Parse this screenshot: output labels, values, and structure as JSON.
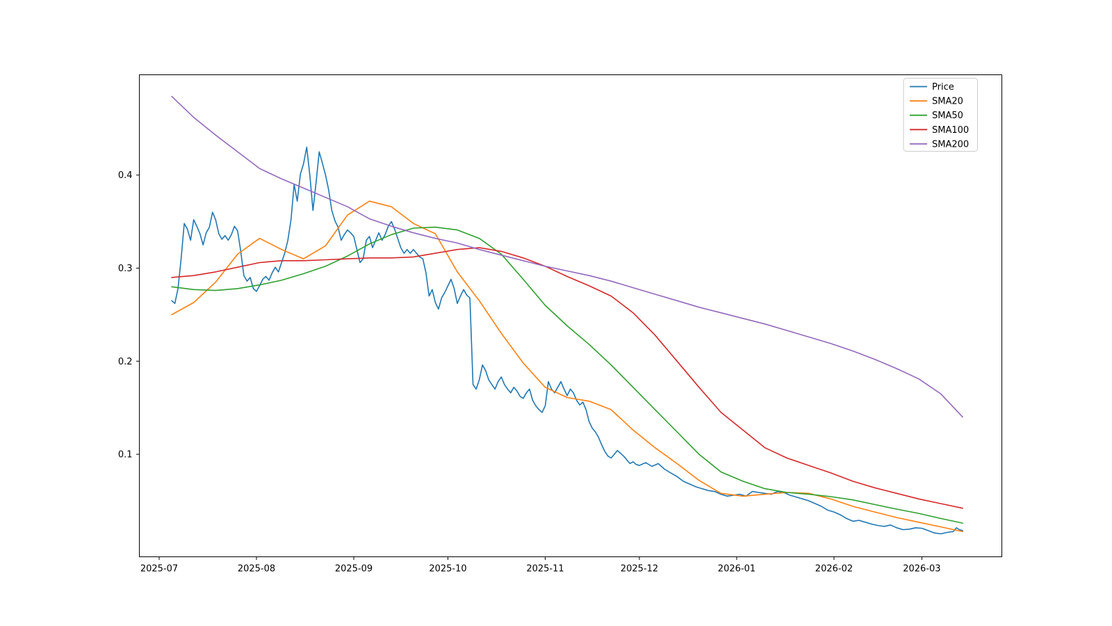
{
  "figure": {
    "background": "#ffffff",
    "axes_edge_color": "#000000",
    "tick_color": "#000000",
    "legend": {
      "position": "upper right",
      "border_color": "#cccccc",
      "background": "rgba(255,255,255,0.8)",
      "entries": [
        "Price",
        "SMA20",
        "SMA50",
        "SMA100",
        "SMA200"
      ]
    }
  },
  "chart_data": {
    "type": "line",
    "title": "",
    "xlabel": "",
    "ylabel": "",
    "grid": false,
    "legend_position": "upper right",
    "x_axis": {
      "kind": "date",
      "tick_labels": [
        "2025-07",
        "2025-08",
        "2025-09",
        "2025-10",
        "2025-11",
        "2025-12",
        "2026-01",
        "2026-02",
        "2026-03"
      ],
      "tick_dates": [
        "2025-07-01",
        "2025-08-01",
        "2025-09-01",
        "2025-10-01",
        "2025-11-01",
        "2025-12-01",
        "2026-01-01",
        "2026-02-01",
        "2026-03-01"
      ],
      "xlim": [
        "2025-06-24",
        "2026-03-26"
      ]
    },
    "y_axis": {
      "tick_labels": [
        "0.1",
        "0.2",
        "0.3",
        "0.4"
      ],
      "ticks": [
        0.1,
        0.2,
        0.3,
        0.4
      ],
      "ylim": [
        -0.01,
        0.508
      ]
    },
    "series": [
      {
        "name": "Price",
        "color": "#1f77b4",
        "x": [
          "2025-07-05",
          "2025-07-06",
          "2025-07-07",
          "2025-07-08",
          "2025-07-09",
          "2025-07-10",
          "2025-07-11",
          "2025-07-12",
          "2025-07-13",
          "2025-07-14",
          "2025-07-15",
          "2025-07-16",
          "2025-07-17",
          "2025-07-18",
          "2025-07-19",
          "2025-07-20",
          "2025-07-21",
          "2025-07-22",
          "2025-07-23",
          "2025-07-24",
          "2025-07-25",
          "2025-07-26",
          "2025-07-27",
          "2025-07-28",
          "2025-07-29",
          "2025-07-30",
          "2025-07-31",
          "2025-08-01",
          "2025-08-02",
          "2025-08-03",
          "2025-08-04",
          "2025-08-05",
          "2025-08-06",
          "2025-08-07",
          "2025-08-08",
          "2025-08-09",
          "2025-08-10",
          "2025-08-11",
          "2025-08-12",
          "2025-08-13",
          "2025-08-14",
          "2025-08-15",
          "2025-08-16",
          "2025-08-17",
          "2025-08-18",
          "2025-08-19",
          "2025-08-20",
          "2025-08-21",
          "2025-08-22",
          "2025-08-23",
          "2025-08-24",
          "2025-08-25",
          "2025-08-26",
          "2025-08-27",
          "2025-08-28",
          "2025-08-29",
          "2025-08-30",
          "2025-08-31",
          "2025-09-01",
          "2025-09-02",
          "2025-09-03",
          "2025-09-04",
          "2025-09-05",
          "2025-09-06",
          "2025-09-07",
          "2025-09-08",
          "2025-09-09",
          "2025-09-10",
          "2025-09-11",
          "2025-09-12",
          "2025-09-13",
          "2025-09-14",
          "2025-09-15",
          "2025-09-16",
          "2025-09-17",
          "2025-09-18",
          "2025-09-19",
          "2025-09-20",
          "2025-09-21",
          "2025-09-22",
          "2025-09-23",
          "2025-09-24",
          "2025-09-25",
          "2025-09-26",
          "2025-09-27",
          "2025-09-28",
          "2025-09-29",
          "2025-09-30",
          "2025-10-01",
          "2025-10-02",
          "2025-10-03",
          "2025-10-04",
          "2025-10-05",
          "2025-10-06",
          "2025-10-07",
          "2025-10-08",
          "2025-10-09",
          "2025-10-10",
          "2025-10-11",
          "2025-10-12",
          "2025-10-13",
          "2025-10-14",
          "2025-10-15",
          "2025-10-16",
          "2025-10-17",
          "2025-10-18",
          "2025-10-19",
          "2025-10-20",
          "2025-10-21",
          "2025-10-22",
          "2025-10-23",
          "2025-10-24",
          "2025-10-25",
          "2025-10-26",
          "2025-10-27",
          "2025-10-28",
          "2025-10-29",
          "2025-10-30",
          "2025-10-31",
          "2025-11-01",
          "2025-11-02",
          "2025-11-03",
          "2025-11-04",
          "2025-11-05",
          "2025-11-06",
          "2025-11-07",
          "2025-11-08",
          "2025-11-09",
          "2025-11-10",
          "2025-11-11",
          "2025-11-12",
          "2025-11-13",
          "2025-11-14",
          "2025-11-15",
          "2025-11-16",
          "2025-11-17",
          "2025-11-18",
          "2025-11-19",
          "2025-11-20",
          "2025-11-21",
          "2025-11-22",
          "2025-11-23",
          "2025-11-24",
          "2025-11-25",
          "2025-11-26",
          "2025-11-27",
          "2025-11-28",
          "2025-11-29",
          "2025-11-30",
          "2025-12-01",
          "2025-12-03",
          "2025-12-05",
          "2025-12-07",
          "2025-12-09",
          "2025-12-11",
          "2025-12-13",
          "2025-12-15",
          "2025-12-17",
          "2025-12-19",
          "2025-12-21",
          "2025-12-23",
          "2025-12-25",
          "2025-12-27",
          "2025-12-29",
          "2025-12-31",
          "2026-01-02",
          "2026-01-04",
          "2026-01-06",
          "2026-01-08",
          "2026-01-10",
          "2026-01-12",
          "2026-01-14",
          "2026-01-16",
          "2026-01-18",
          "2026-01-20",
          "2026-01-22",
          "2026-01-24",
          "2026-01-26",
          "2026-01-28",
          "2026-01-30",
          "2026-02-01",
          "2026-02-03",
          "2026-02-05",
          "2026-02-07",
          "2026-02-09",
          "2026-02-11",
          "2026-02-13",
          "2026-02-15",
          "2026-02-17",
          "2026-02-19",
          "2026-02-21",
          "2026-02-23",
          "2026-02-25",
          "2026-02-27",
          "2026-03-01",
          "2026-03-03",
          "2026-03-05",
          "2026-03-07",
          "2026-03-09",
          "2026-03-11",
          "2026-03-12",
          "2026-03-13",
          "2026-03-14"
        ],
        "y": [
          0.265,
          0.262,
          0.278,
          0.31,
          0.348,
          0.342,
          0.33,
          0.352,
          0.345,
          0.337,
          0.325,
          0.338,
          0.344,
          0.36,
          0.352,
          0.337,
          0.331,
          0.335,
          0.33,
          0.336,
          0.345,
          0.34,
          0.318,
          0.292,
          0.286,
          0.29,
          0.278,
          0.275,
          0.281,
          0.288,
          0.291,
          0.287,
          0.295,
          0.301,
          0.296,
          0.306,
          0.316,
          0.33,
          0.352,
          0.39,
          0.372,
          0.401,
          0.412,
          0.43,
          0.4,
          0.362,
          0.392,
          0.425,
          0.413,
          0.4,
          0.384,
          0.362,
          0.351,
          0.344,
          0.33,
          0.336,
          0.341,
          0.338,
          0.334,
          0.32,
          0.306,
          0.31,
          0.33,
          0.334,
          0.322,
          0.33,
          0.338,
          0.33,
          0.336,
          0.345,
          0.35,
          0.342,
          0.332,
          0.322,
          0.316,
          0.32,
          0.316,
          0.32,
          0.316,
          0.312,
          0.31,
          0.295,
          0.27,
          0.277,
          0.263,
          0.256,
          0.268,
          0.274,
          0.281,
          0.288,
          0.278,
          0.262,
          0.27,
          0.277,
          0.271,
          0.268,
          0.175,
          0.17,
          0.18,
          0.196,
          0.19,
          0.18,
          0.175,
          0.17,
          0.178,
          0.183,
          0.175,
          0.17,
          0.166,
          0.172,
          0.168,
          0.162,
          0.16,
          0.166,
          0.17,
          0.158,
          0.152,
          0.148,
          0.145,
          0.152,
          0.178,
          0.17,
          0.166,
          0.172,
          0.178,
          0.17,
          0.163,
          0.17,
          0.166,
          0.158,
          0.153,
          0.156,
          0.148,
          0.135,
          0.128,
          0.124,
          0.118,
          0.11,
          0.103,
          0.098,
          0.096,
          0.1,
          0.104,
          0.101,
          0.098,
          0.094,
          0.09,
          0.092,
          0.089,
          0.088,
          0.091,
          0.087,
          0.09,
          0.084,
          0.08,
          0.076,
          0.071,
          0.068,
          0.065,
          0.063,
          0.061,
          0.06,
          0.057,
          0.055,
          0.056,
          0.057,
          0.055,
          0.06,
          0.059,
          0.058,
          0.057,
          0.06,
          0.059,
          0.056,
          0.054,
          0.052,
          0.05,
          0.047,
          0.044,
          0.04,
          0.038,
          0.035,
          0.031,
          0.028,
          0.029,
          0.027,
          0.025,
          0.0235,
          0.0225,
          0.024,
          0.021,
          0.019,
          0.0195,
          0.021,
          0.0205,
          0.018,
          0.0155,
          0.0145,
          0.016,
          0.017,
          0.021,
          0.019,
          0.018
        ]
      },
      {
        "name": "SMA20",
        "color": "#ff7f0e",
        "x": [
          "2025-07-05",
          "2025-07-12",
          "2025-07-19",
          "2025-07-26",
          "2025-08-02",
          "2025-08-09",
          "2025-08-16",
          "2025-08-23",
          "2025-08-30",
          "2025-09-06",
          "2025-09-13",
          "2025-09-20",
          "2025-09-27",
          "2025-10-04",
          "2025-10-11",
          "2025-10-18",
          "2025-10-25",
          "2025-11-01",
          "2025-11-08",
          "2025-11-15",
          "2025-11-22",
          "2025-11-29",
          "2025-12-06",
          "2025-12-13",
          "2025-12-20",
          "2025-12-27",
          "2026-01-03",
          "2026-01-10",
          "2026-01-17",
          "2026-01-24",
          "2026-01-31",
          "2026-02-07",
          "2026-02-14",
          "2026-02-21",
          "2026-02-28",
          "2026-03-07",
          "2026-03-14"
        ],
        "y": [
          0.25,
          0.263,
          0.285,
          0.315,
          0.332,
          0.32,
          0.31,
          0.324,
          0.357,
          0.372,
          0.366,
          0.348,
          0.337,
          0.296,
          0.265,
          0.23,
          0.198,
          0.172,
          0.161,
          0.157,
          0.148,
          0.126,
          0.107,
          0.09,
          0.072,
          0.058,
          0.055,
          0.057,
          0.059,
          0.058,
          0.052,
          0.044,
          0.038,
          0.032,
          0.027,
          0.022,
          0.017
        ]
      },
      {
        "name": "SMA50",
        "color": "#2ca02c",
        "x": [
          "2025-07-05",
          "2025-07-12",
          "2025-07-19",
          "2025-07-26",
          "2025-08-02",
          "2025-08-09",
          "2025-08-16",
          "2025-08-23",
          "2025-08-30",
          "2025-09-06",
          "2025-09-13",
          "2025-09-20",
          "2025-09-27",
          "2025-10-04",
          "2025-10-11",
          "2025-10-18",
          "2025-10-25",
          "2025-11-01",
          "2025-11-08",
          "2025-11-15",
          "2025-11-22",
          "2025-11-29",
          "2025-12-06",
          "2025-12-13",
          "2025-12-20",
          "2025-12-27",
          "2026-01-03",
          "2026-01-10",
          "2026-01-17",
          "2026-01-24",
          "2026-01-31",
          "2026-02-07",
          "2026-02-14",
          "2026-02-21",
          "2026-02-28",
          "2026-03-07",
          "2026-03-14"
        ],
        "y": [
          0.28,
          0.277,
          0.276,
          0.278,
          0.282,
          0.287,
          0.294,
          0.302,
          0.313,
          0.326,
          0.336,
          0.343,
          0.344,
          0.341,
          0.332,
          0.315,
          0.288,
          0.26,
          0.238,
          0.218,
          0.196,
          0.172,
          0.148,
          0.124,
          0.1,
          0.081,
          0.071,
          0.063,
          0.059,
          0.057,
          0.0545,
          0.051,
          0.046,
          0.041,
          0.0365,
          0.031,
          0.026
        ]
      },
      {
        "name": "SMA100",
        "color": "#d62728",
        "x": [
          "2025-07-05",
          "2025-07-12",
          "2025-07-19",
          "2025-07-26",
          "2025-08-02",
          "2025-08-09",
          "2025-08-16",
          "2025-08-23",
          "2025-08-30",
          "2025-09-06",
          "2025-09-13",
          "2025-09-20",
          "2025-09-27",
          "2025-10-04",
          "2025-10-11",
          "2025-10-18",
          "2025-10-25",
          "2025-11-01",
          "2025-11-08",
          "2025-11-15",
          "2025-11-22",
          "2025-11-29",
          "2025-12-06",
          "2025-12-13",
          "2025-12-20",
          "2025-12-27",
          "2026-01-03",
          "2026-01-10",
          "2026-01-17",
          "2026-01-24",
          "2026-01-31",
          "2026-02-07",
          "2026-02-14",
          "2026-02-21",
          "2026-02-28",
          "2026-03-07",
          "2026-03-14"
        ],
        "y": [
          0.29,
          0.292,
          0.296,
          0.301,
          0.306,
          0.308,
          0.308,
          0.309,
          0.31,
          0.311,
          0.311,
          0.312,
          0.316,
          0.32,
          0.322,
          0.318,
          0.311,
          0.302,
          0.291,
          0.281,
          0.27,
          0.252,
          0.228,
          0.2,
          0.172,
          0.145,
          0.126,
          0.107,
          0.096,
          0.088,
          0.08,
          0.071,
          0.064,
          0.058,
          0.052,
          0.047,
          0.042
        ]
      },
      {
        "name": "SMA200",
        "color": "#9467bd",
        "x": [
          "2025-07-05",
          "2025-07-12",
          "2025-07-19",
          "2025-07-26",
          "2025-08-02",
          "2025-08-09",
          "2025-08-16",
          "2025-08-23",
          "2025-08-30",
          "2025-09-06",
          "2025-09-13",
          "2025-09-20",
          "2025-09-27",
          "2025-10-04",
          "2025-10-11",
          "2025-10-18",
          "2025-10-25",
          "2025-11-01",
          "2025-11-08",
          "2025-11-15",
          "2025-11-22",
          "2025-11-29",
          "2025-12-06",
          "2025-12-13",
          "2025-12-20",
          "2025-12-27",
          "2026-01-03",
          "2026-01-10",
          "2026-01-17",
          "2026-01-24",
          "2026-01-31",
          "2026-02-07",
          "2026-02-14",
          "2026-02-21",
          "2026-02-28",
          "2026-03-07",
          "2026-03-14"
        ],
        "y": [
          0.4845,
          0.462,
          0.443,
          0.425,
          0.407,
          0.396,
          0.386,
          0.376,
          0.366,
          0.353,
          0.345,
          0.338,
          0.332,
          0.327,
          0.32,
          0.314,
          0.308,
          0.302,
          0.297,
          0.292,
          0.286,
          0.279,
          0.272,
          0.265,
          0.258,
          0.252,
          0.246,
          0.24,
          0.233,
          0.226,
          0.219,
          0.211,
          0.202,
          0.192,
          0.181,
          0.165,
          0.14
        ]
      }
    ]
  }
}
